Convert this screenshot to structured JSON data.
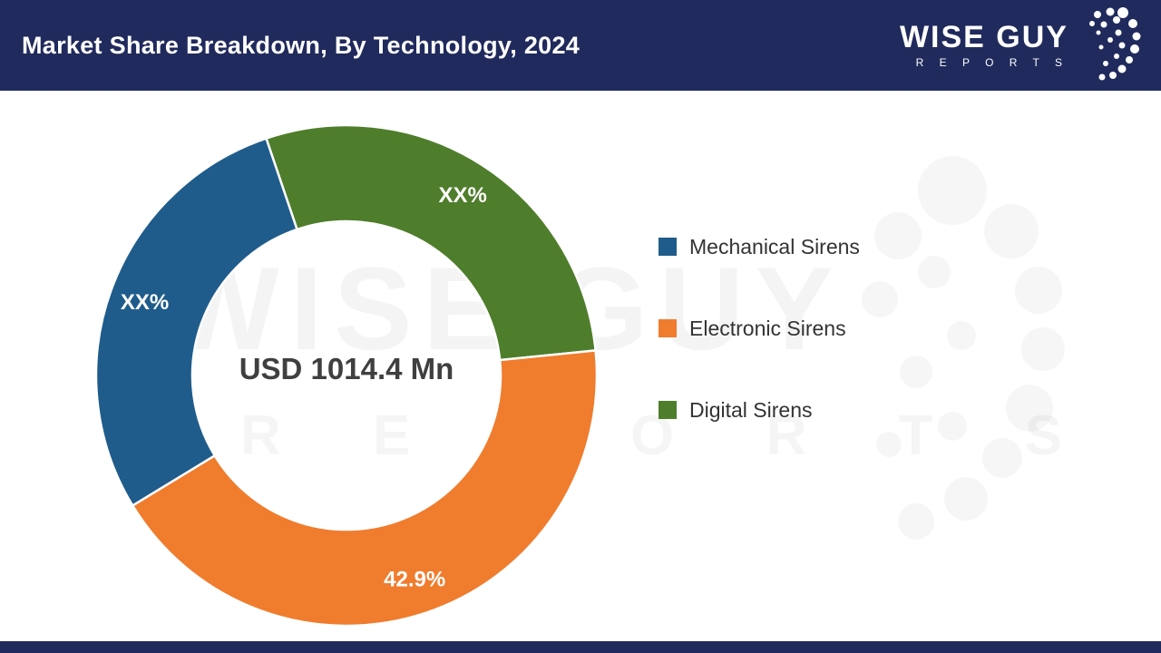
{
  "header": {
    "title": "Market Share Breakdown, By Technology, 2024",
    "logo": {
      "line1": "WISE GUY",
      "line2": "R E P O R T S"
    }
  },
  "watermark": {
    "line1": "WISE GUY",
    "line2": "R E P O R T S"
  },
  "chart_data": {
    "type": "donut",
    "title": "Market Share Breakdown, By Technology, 2024",
    "center_label": "USD 1014.4 Mn",
    "unit": "%",
    "start_angle_deg": 341.3,
    "legend_position": "right",
    "segments": [
      {
        "name": "Digital Sirens",
        "value": 28.6,
        "display_label": "XX%",
        "color": "#4e7d2b"
      },
      {
        "name": "Electronic Sirens",
        "value": 42.9,
        "display_label": "42.9%",
        "color": "#f07c2e"
      },
      {
        "name": "Mechanical Sirens",
        "value": 28.5,
        "display_label": "XX%",
        "color": "#1f5c8b"
      }
    ]
  },
  "legend": {
    "items": [
      {
        "label": "Mechanical Sirens",
        "color": "#1f5c8b"
      },
      {
        "label": "Electronic Sirens",
        "color": "#f07c2e"
      },
      {
        "label": "Digital Sirens",
        "color": "#4e7d2b"
      }
    ]
  }
}
